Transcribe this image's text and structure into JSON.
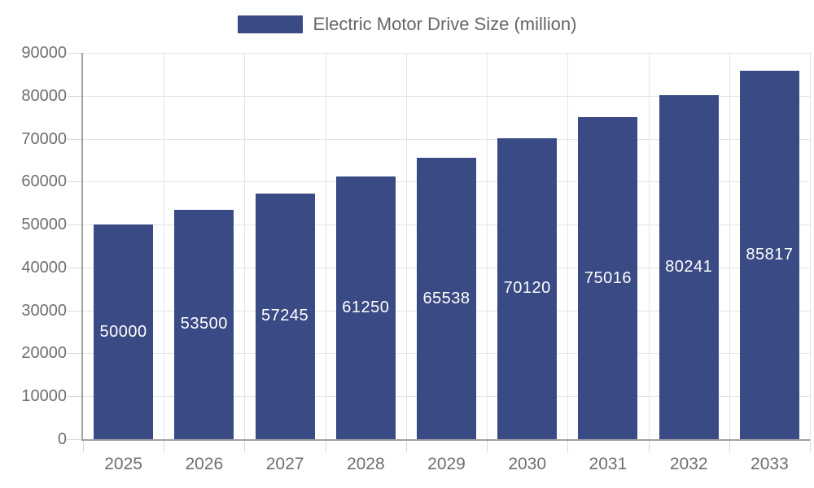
{
  "chart_data": {
    "type": "bar",
    "title": "Electric Motor Drive Size (million)",
    "series_name": "Electric Motor Drive Size (million)",
    "categories": [
      "2025",
      "2026",
      "2027",
      "2028",
      "2029",
      "2030",
      "2031",
      "2032",
      "2033"
    ],
    "values": [
      50000,
      53500,
      57245,
      61250,
      65538,
      70120,
      75016,
      80241,
      85817
    ],
    "xlabel": "",
    "ylabel": "",
    "ylim": [
      0,
      90000
    ],
    "ytick_step": 10000,
    "ytick_labels": [
      "0",
      "10000",
      "20000",
      "30000",
      "40000",
      "50000",
      "60000",
      "70000",
      "80000",
      "90000"
    ],
    "grid": true,
    "grid_style": "horizontal lines at each y tick, vertical lines at category boundaries",
    "legend_position": "top-center",
    "value_label_position": "inside-middle",
    "colors": {
      "bar": "#394A84",
      "value_label": "#FFFFFF",
      "axis_label": "#6F6F6F",
      "legend_text": "#666666",
      "grid_line": "#E4E4E9",
      "axis_line": "#A2A2A2",
      "tick": "#D8D8DC",
      "background": "#FFFFFF"
    }
  }
}
